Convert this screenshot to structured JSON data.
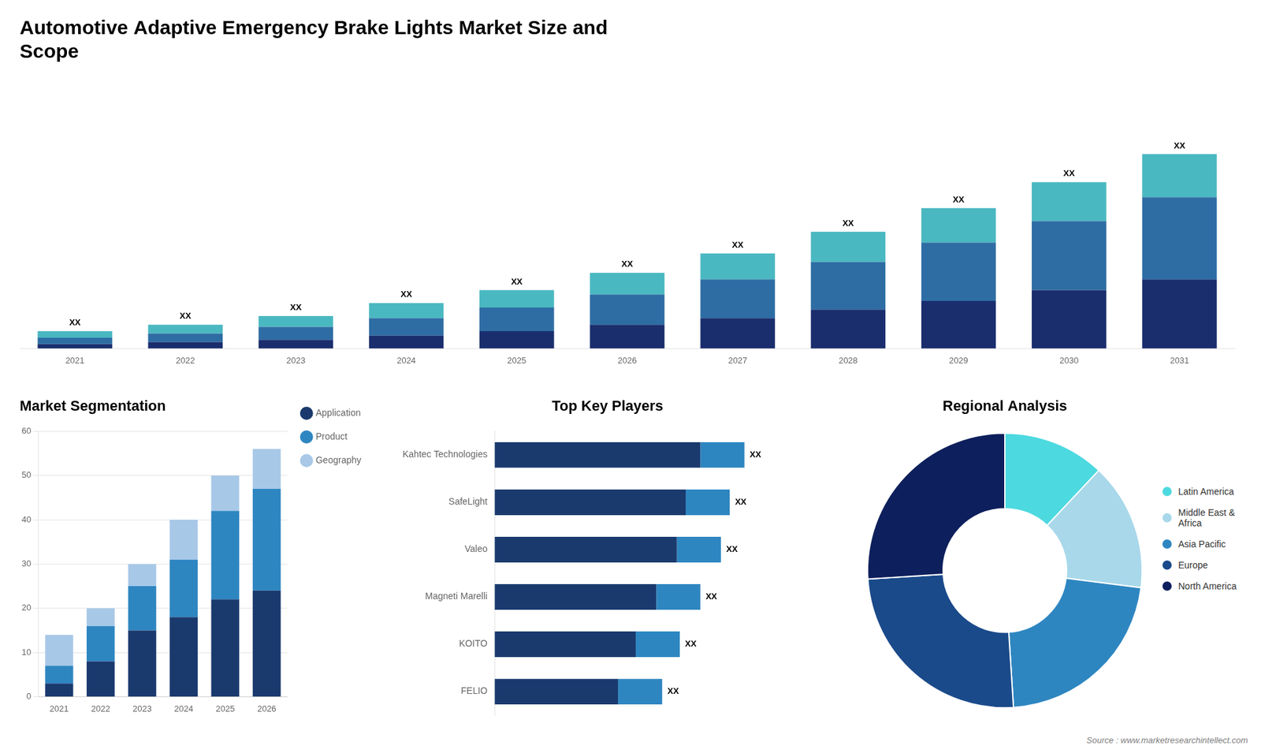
{
  "chart_data": [
    {
      "type": "bar",
      "title": "Automotive Adaptive Emergency Brake Lights Market Size and\nScope",
      "categories": [
        "2021",
        "2022",
        "2023",
        "2024",
        "2025",
        "2026",
        "2027",
        "2028",
        "2029",
        "2030",
        "2031"
      ],
      "series": [
        {
          "color": "#1a2e6e",
          "values": [
            2,
            3,
            4,
            6,
            8,
            11,
            14,
            18,
            22,
            27,
            32
          ]
        },
        {
          "color": "#2e6da4",
          "values": [
            3,
            4,
            6,
            8,
            11,
            14,
            18,
            22,
            27,
            32,
            38
          ]
        },
        {
          "color": "#4ab8c1",
          "values": [
            3,
            4,
            5,
            7,
            8,
            10,
            12,
            14,
            16,
            18,
            20
          ]
        }
      ],
      "stacked": true,
      "ylim": [
        0,
        124.2
      ],
      "tick_labels": "x",
      "grid": false,
      "annotations": [
        {
          "category": "2021",
          "text": "XX"
        },
        {
          "category": "2022",
          "text": "XX"
        },
        {
          "category": "2023",
          "text": "XX"
        },
        {
          "category": "2024",
          "text": "XX"
        },
        {
          "category": "2025",
          "text": "XX"
        },
        {
          "category": "2026",
          "text": "XX"
        },
        {
          "category": "2027",
          "text": "XX"
        },
        {
          "category": "2028",
          "text": "XX"
        },
        {
          "category": "2029",
          "text": "XX"
        },
        {
          "category": "2030",
          "text": "XX"
        },
        {
          "category": "2031",
          "text": "XX"
        }
      ]
    },
    {
      "type": "bar",
      "title": "Market Segmentation",
      "categories": [
        "2021",
        "2022",
        "2023",
        "2024",
        "2025",
        "2026"
      ],
      "series": [
        {
          "name": "Application",
          "color": "#1a3a6e",
          "values": [
            3,
            8,
            15,
            18,
            22,
            24
          ]
        },
        {
          "name": "Product",
          "color": "#2e86c1",
          "values": [
            4,
            8,
            10,
            13,
            20,
            23
          ]
        },
        {
          "name": "Geography",
          "color": "#a8c8e8",
          "values": [
            7,
            4,
            5,
            9,
            8,
            9
          ]
        }
      ],
      "stacked": true,
      "ylim": [
        0,
        60
      ],
      "yticks": [
        0,
        10,
        20,
        30,
        40,
        50,
        60
      ],
      "grid": true,
      "legend": "right"
    },
    {
      "type": "bar",
      "orientation": "horizontal",
      "title": "Top Key Players",
      "categories": [
        "Kahtec Technologies",
        "SafeLight",
        "Valeo",
        "Magneti Marelli",
        "KOITO",
        "FELIO"
      ],
      "series": [
        {
          "color": "#1a3a6e",
          "values": [
            70,
            65,
            62,
            55,
            48,
            42
          ]
        },
        {
          "color": "#2e86c1",
          "values": [
            15,
            15,
            15,
            15,
            15,
            15
          ]
        }
      ],
      "stacked": true,
      "xlim": [
        0,
        108.8
      ],
      "tick_labels": "y",
      "grid": false,
      "annotations": [
        {
          "category": "Kahtec Technologies",
          "text": "XX"
        },
        {
          "category": "SafeLight",
          "text": "XX"
        },
        {
          "category": "Valeo",
          "text": "XX"
        },
        {
          "category": "Magneti Marelli",
          "text": "XX"
        },
        {
          "category": "KOITO",
          "text": "XX"
        },
        {
          "category": "FELIO",
          "text": "XX"
        }
      ]
    },
    {
      "type": "doughnut",
      "title": "Regional Analysis",
      "categories": [
        "Latin America",
        "Middle East &\nAfrica",
        "Asia Pacific",
        "Europe",
        "North America"
      ],
      "values": [
        12,
        15,
        22,
        25,
        26
      ],
      "colors": [
        "#4dd9e0",
        "#a8d8ea",
        "#2e86c1",
        "#1a4a8a",
        "#0d1f5c"
      ],
      "legend": "right",
      "annotations": [
        {
          "text": "Source : www.marketresearchintellect.com"
        }
      ]
    }
  ]
}
